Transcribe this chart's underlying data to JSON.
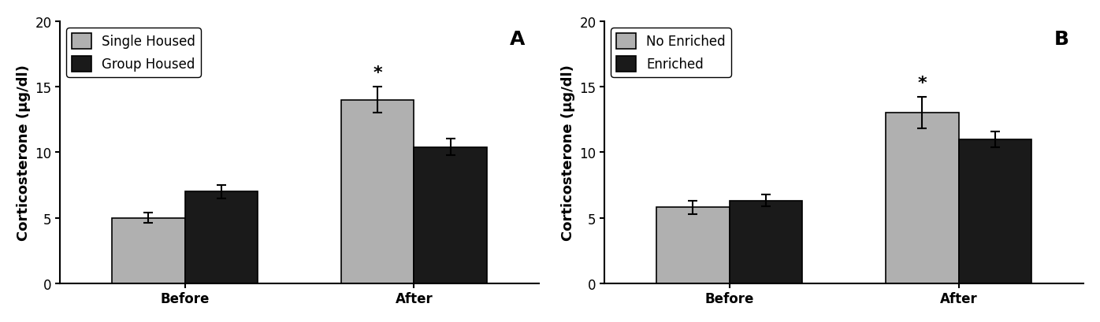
{
  "panel_A": {
    "title": "A",
    "ylabel": "Corticosterone (μg/dl)",
    "groups": [
      "Before",
      "After"
    ],
    "legend_labels": [
      "Single Housed",
      "Group Housed"
    ],
    "bar_colors": [
      "#b0b0b0",
      "#1a1a1a"
    ],
    "values": [
      [
        5.0,
        14.0
      ],
      [
        7.0,
        10.4
      ]
    ],
    "errors": [
      [
        0.4,
        1.0
      ],
      [
        0.5,
        0.65
      ]
    ],
    "ylim": [
      0,
      20
    ],
    "yticks": [
      0,
      5,
      10,
      15,
      20
    ],
    "star_text": "*"
  },
  "panel_B": {
    "title": "B",
    "ylabel": "Corticosterone (μg/dl)",
    "groups": [
      "Before",
      "After"
    ],
    "legend_labels": [
      "No Enriched",
      "Enriched"
    ],
    "bar_colors": [
      "#b0b0b0",
      "#1a1a1a"
    ],
    "values": [
      [
        5.8,
        13.0
      ],
      [
        6.3,
        11.0
      ]
    ],
    "errors": [
      [
        0.5,
        1.2
      ],
      [
        0.45,
        0.6
      ]
    ],
    "ylim": [
      0,
      20
    ],
    "yticks": [
      0,
      5,
      10,
      15,
      20
    ],
    "star_text": "*"
  },
  "bar_width": 0.35,
  "bar_edgecolor": "#000000",
  "group_centers": [
    0.0,
    1.1
  ],
  "background_color": "#ffffff",
  "tick_fontsize": 12,
  "label_fontsize": 13,
  "legend_fontsize": 12,
  "title_fontsize": 18
}
